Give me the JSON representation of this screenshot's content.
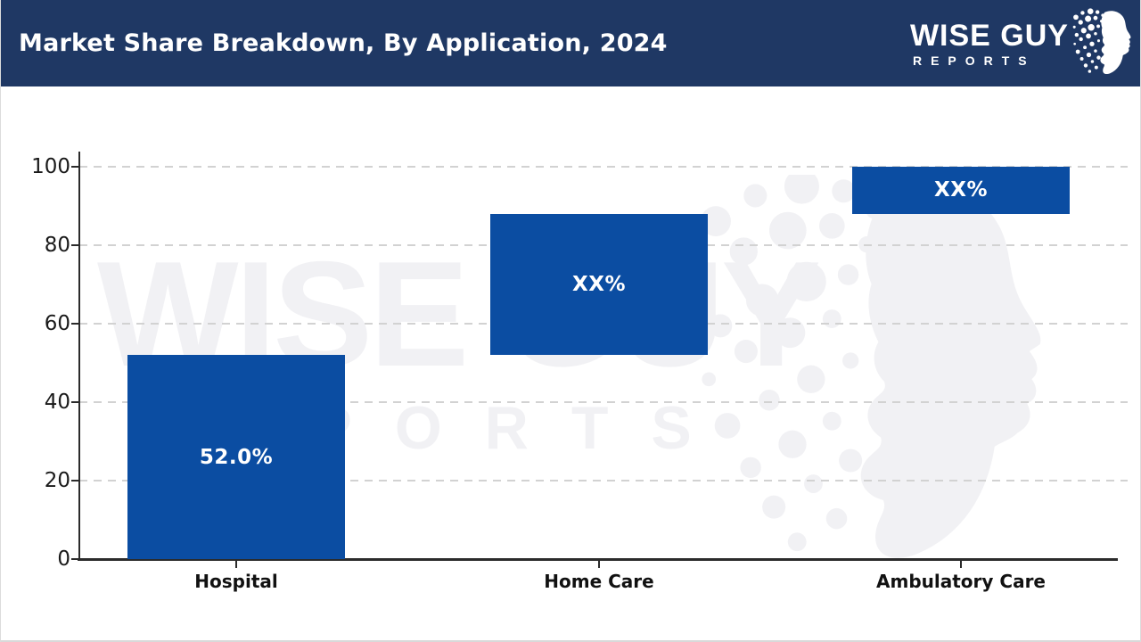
{
  "header": {
    "title": "Market Share Breakdown, By Application, 2024",
    "bg_color": "#1f3864",
    "logo": {
      "line1": "WISE GUY",
      "line2": "REPORTS"
    }
  },
  "watermark": {
    "line1": "WISE GUY",
    "line2": "REPORTS"
  },
  "chart_data": {
    "type": "bar",
    "subtype": "waterfall-floating-bars",
    "title": "Market Share Breakdown, By Application, 2024",
    "categories": [
      "Hospital",
      "Home Care",
      "Ambulatory Care"
    ],
    "bars": [
      {
        "category": "Hospital",
        "start": 0,
        "end": 52,
        "label": "52.0%"
      },
      {
        "category": "Home Care",
        "start": 52,
        "end": 88,
        "label": "XX%"
      },
      {
        "category": "Ambulatory Care",
        "start": 88,
        "end": 100,
        "label": "XX%"
      }
    ],
    "yticks": [
      0,
      20,
      40,
      60,
      80,
      100
    ],
    "ylim": [
      0,
      100
    ],
    "xlabel": "",
    "ylabel": "",
    "grid": "horizontal-dashed",
    "legend": "none",
    "bar_color": "#0b4da2",
    "label_color": "#ffffff"
  },
  "colors": {
    "header_bg": "#1f3864",
    "bar": "#0b4da2",
    "axis": "#2b2b2b",
    "gridline": "#d2d2d2",
    "watermark": "#f1f1f4",
    "page_edge": "#d9d9d9"
  }
}
